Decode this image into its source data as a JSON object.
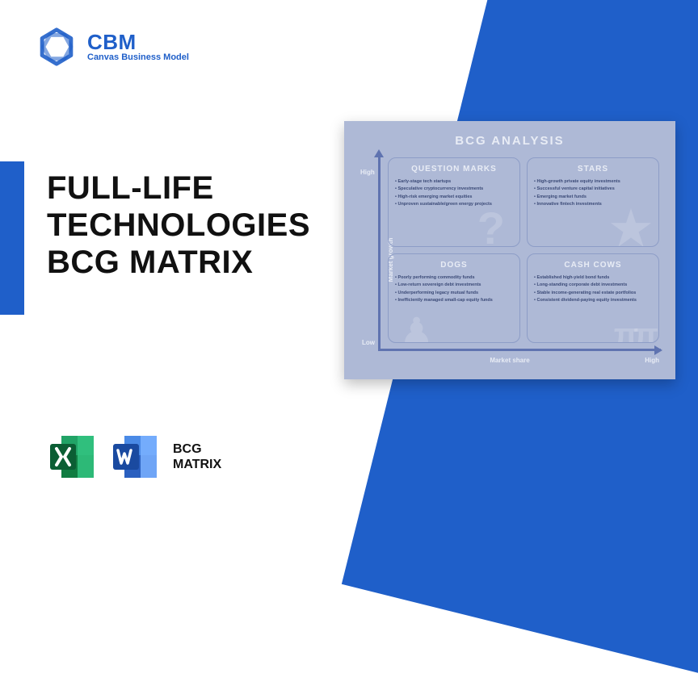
{
  "colors": {
    "brand_blue": "#1f5fc9",
    "card_bg": "#aeb9d6",
    "axis": "#5f73b0",
    "quad_border": "#8d9dc7",
    "quad_text": "#3b4a77",
    "light_label": "#e8ecf5",
    "excel_green": "#107c41",
    "excel_light": "#21a366",
    "word_blue": "#2a5fbf",
    "word_light": "#4a8ae6"
  },
  "logo": {
    "name": "CBM",
    "subtitle": "Canvas Business Model"
  },
  "title": {
    "line1": "FULL-LIFE",
    "line2": "TECHNOLOGIES",
    "line3": "BCG MATRIX"
  },
  "icon_label": {
    "line1": "BCG",
    "line2": "MATRIX"
  },
  "card": {
    "title": "BCG ANALYSIS",
    "y_high": "High",
    "y_low": "Low",
    "x_high": "High",
    "y_axis": "Market growth",
    "x_axis": "Market share",
    "quadrants": {
      "question_marks": {
        "title": "QUESTION MARKS",
        "items": [
          "Early-stage tech startups",
          "Speculative cryptocurrency investments",
          "High-risk emerging market equities",
          "Unproven sustainable/green energy projects"
        ]
      },
      "stars": {
        "title": "STARS",
        "items": [
          "High-growth private equity investments",
          "Successful venture capital initiatives",
          "Emerging market funds",
          "Innovative fintech investments"
        ]
      },
      "dogs": {
        "title": "DOGS",
        "items": [
          "Poorly performing commodity funds",
          "Low-return sovereign debt investments",
          "Underperforming legacy mutual funds",
          "Inefficiently managed small-cap equity funds"
        ]
      },
      "cash_cows": {
        "title": "CASH COWS",
        "items": [
          "Established high-yield bond funds",
          "Long-standing corporate debt investments",
          "Stable income-generating real estate portfolios",
          "Consistent dividend-paying equity investments"
        ]
      }
    }
  }
}
